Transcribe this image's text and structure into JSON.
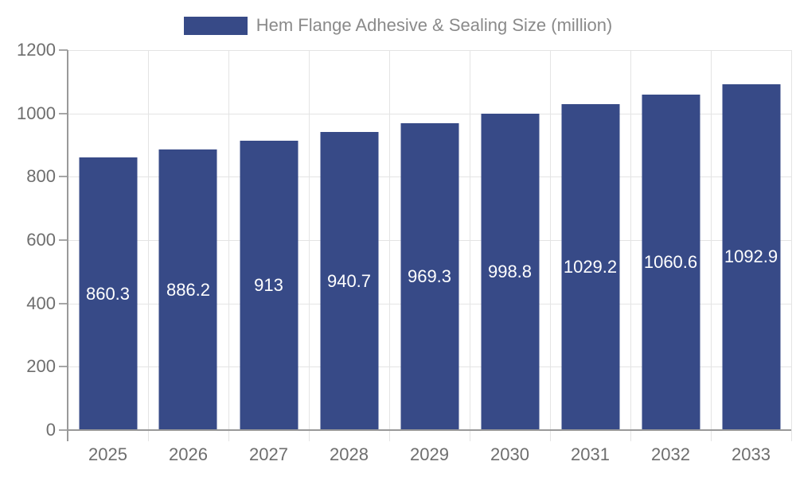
{
  "chart_data": {
    "type": "bar",
    "title": "Hem Flange Adhesive & Sealing Size (million)",
    "categories": [
      "2025",
      "2026",
      "2027",
      "2028",
      "2029",
      "2030",
      "2031",
      "2032",
      "2033"
    ],
    "values": [
      860.3,
      886.2,
      913,
      940.7,
      969.3,
      998.8,
      1029.2,
      1060.6,
      1092.9
    ],
    "value_labels": [
      "860.3",
      "886.2",
      "913",
      "940.7",
      "969.3",
      "998.8",
      "1029.2",
      "1060.6",
      "1092.9"
    ],
    "xlabel": "",
    "ylabel": "",
    "ylim": [
      0,
      1200
    ],
    "yticks": [
      0,
      200,
      400,
      600,
      800,
      1000,
      1200
    ],
    "grid": true,
    "legend_position": "top",
    "colors": {
      "bar": "#374A87",
      "value_label": "#FFFFFF",
      "axis_line": "#999999",
      "tick_mark": "#A6A6A6",
      "gridline": "#E4E4E4",
      "tick_text": "#6E6E6E",
      "legend_text": "#8A8A8A",
      "background": "#FFFFFF"
    }
  }
}
